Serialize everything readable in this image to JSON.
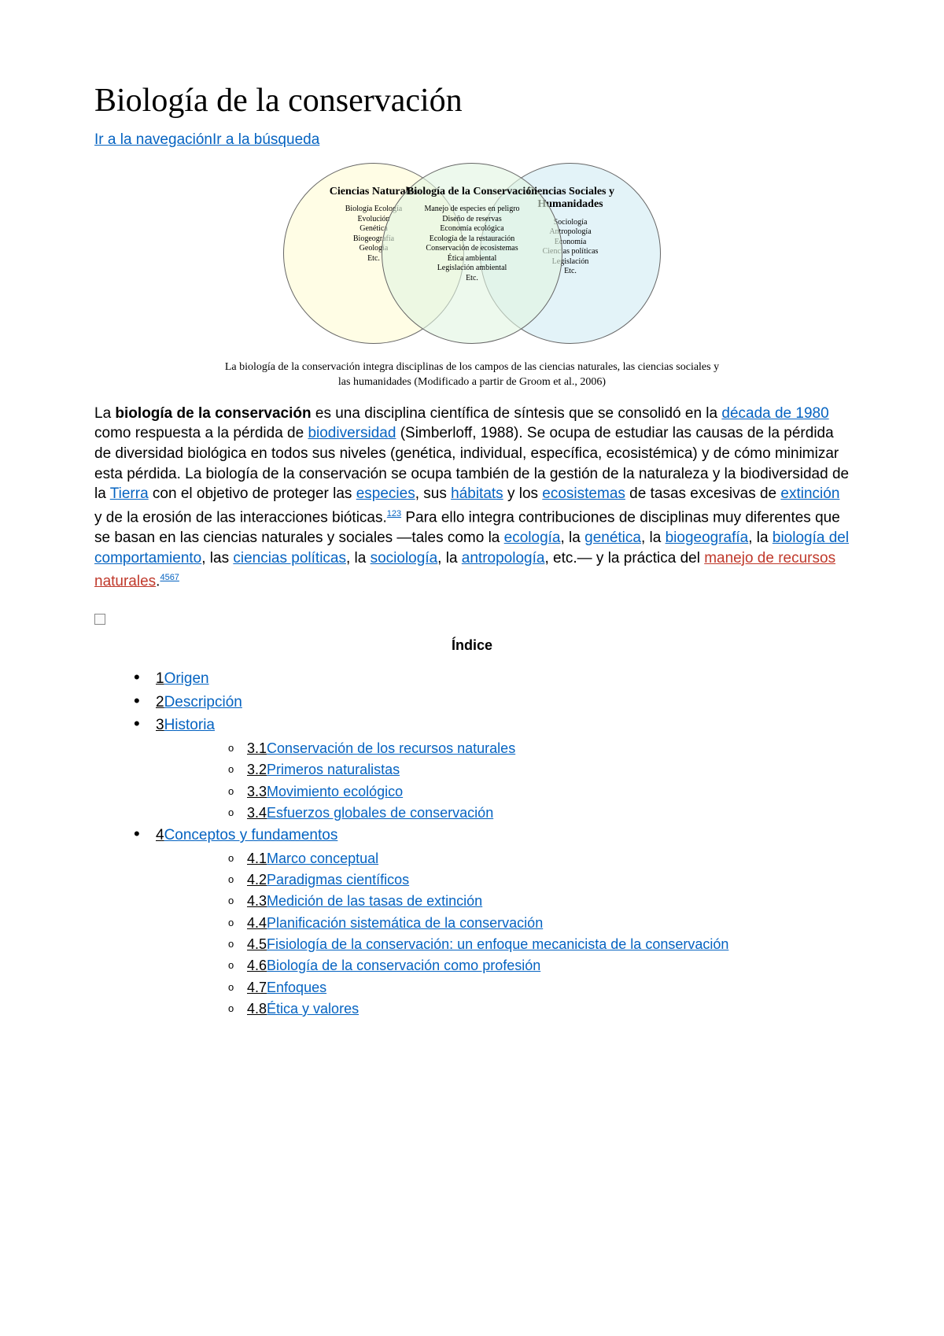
{
  "title": "Biología de la conservación",
  "nav": {
    "goto_nav": "Ir a la navegación",
    "goto_search": "Ir a la búsqueda"
  },
  "venn": {
    "c1": {
      "title": "Ciencias Naturales",
      "items": "Biología Ecología\nEvolución\nGenética\nBiogeografía\nGeología\nEtc.",
      "bg": "rgba(255,252,220,0.75)"
    },
    "c2": {
      "title": "Biología de la Conservación",
      "items": "Manejo de especies en peligro\nDiseño de reservas\nEconomía ecológica\nEcología de la restauración\nConservación de ecosistemas\nÉtica ambiental\nLegislación ambiental\nEtc.",
      "bg": "rgba(225,245,225,0.6)"
    },
    "c3": {
      "title": "Ciencias Sociales y Humanidades",
      "items": "Sociología\nAntropología\nEconomía\nCiencias políticas\nLegislación\nEtc.",
      "bg": "rgba(215,238,245,0.7)"
    },
    "caption": "La biología de la conservación integra disciplinas de los campos de las ciencias naturales, las ciencias sociales y las humanidades (Modificado a partir de Groom et al., 2006)"
  },
  "intro": {
    "t1": "La ",
    "bold": "biología de la conservación",
    "t2": " es una disciplina científica de síntesis que se consolidó en la ",
    "l_decade": "década de 1980",
    "t3": " como respuesta a la pérdida de ",
    "l_biodiv": "biodiversidad",
    "t4": " (Simberloff, 1988). Se ocupa de estudiar las causas de la pérdida de diversidad biológica en todos sus niveles (genética, individual, específica, ecosistémica) y de cómo minimizar esta pérdida. La biología de la conservación se ocupa también de la gestión de la naturaleza y la biodiversidad de la ",
    "l_tierra": "Tierra",
    "t5": " con el objetivo de proteger las ",
    "l_especies": "especies",
    "t6": ", sus ",
    "l_habitats": "hábitats",
    "t7": " y los ",
    "l_ecos": "ecosistemas",
    "t8": " de tasas excesivas de ",
    "l_ext": "extinción",
    "t9": " y de la erosión de las interacciones bióticas.",
    "sup1": "123",
    "t10": " Para ello integra contribuciones de disciplinas muy diferentes que se basan en las ciencias naturales y sociales —tales como la ",
    "l_eco": "ecología",
    "t11": ", la ",
    "l_gen": "genética",
    "t12": ", la ",
    "l_biogeo": "biogeografía",
    "t13": ", la ",
    "l_biocomp": "biología del comportamiento",
    "t14": ", las ",
    "l_cpol": "ciencias políticas",
    "t15": ", la ",
    "l_soc": "sociología",
    "t16": ", la ",
    "l_antro": "antropología",
    "t17": ", etc.— y la práctica del ",
    "l_manejo": "manejo de recursos naturales",
    "t18": ".",
    "sup2": "4567"
  },
  "indice": {
    "title": "Índice",
    "items": [
      {
        "num": "1",
        "label": "Origen"
      },
      {
        "num": "2",
        "label": "Descripción"
      },
      {
        "num": "3",
        "label": "Historia",
        "children": [
          {
            "num": "3.1",
            "label": "Conservación de los recursos naturales"
          },
          {
            "num": "3.2",
            "label": "Primeros naturalistas"
          },
          {
            "num": "3.3",
            "label": "Movimiento ecológico"
          },
          {
            "num": "3.4",
            "label": "Esfuerzos globales de conservación"
          }
        ]
      },
      {
        "num": "4",
        "label": "Conceptos y fundamentos",
        "children": [
          {
            "num": "4.1",
            "label": "Marco conceptual"
          },
          {
            "num": "4.2",
            "label": "Paradigmas científicos"
          },
          {
            "num": "4.3",
            "label": "Medición de las tasas de extinción"
          },
          {
            "num": "4.4",
            "label": "Planificación sistemática de la conservación"
          },
          {
            "num": "4.5",
            "label": "Fisiología de la conservación: un enfoque mecanicista de la conservación"
          },
          {
            "num": "4.6",
            "label": "Biología de la conservación como profesión"
          },
          {
            "num": "4.7",
            "label": "Enfoques"
          },
          {
            "num": "4.8",
            "label": "Ética y valores"
          }
        ]
      }
    ]
  }
}
